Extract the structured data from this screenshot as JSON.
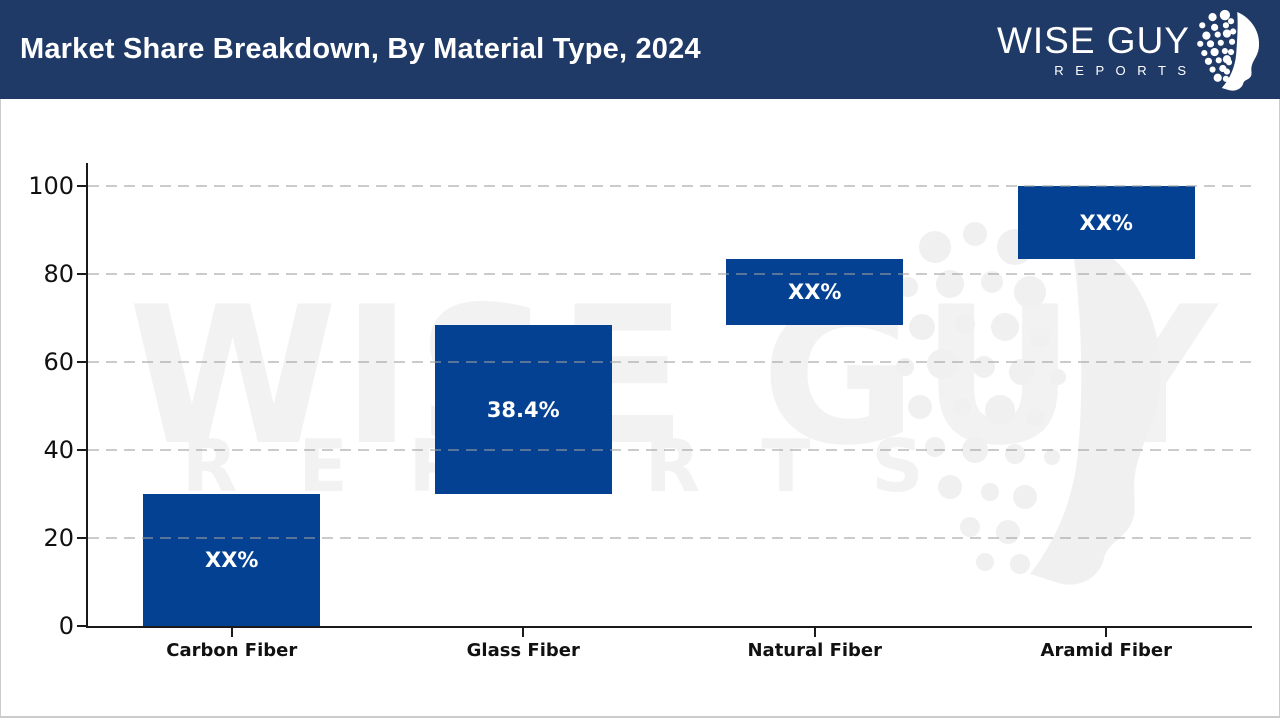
{
  "header": {
    "title": "Market Share Breakdown, By Material Type, 2024",
    "bg_color": "#203A67",
    "logo": {
      "wordmark": "WISE GUY",
      "subtext": "R E P O R T S"
    }
  },
  "watermark": {
    "wordmark": "WISE GUY",
    "subtext": "R E P O R T S"
  },
  "chart_data": {
    "type": "bar",
    "subtype": "floating-waterfall",
    "title": "Market Share Breakdown, By Material Type, 2024",
    "categories": [
      "Carbon Fiber",
      "Glass Fiber",
      "Natural Fiber",
      "Aramid Fiber"
    ],
    "segments": [
      {
        "category": "Carbon Fiber",
        "start": 0,
        "end": 30,
        "value": 30,
        "label": "XX%"
      },
      {
        "category": "Glass Fiber",
        "start": 30,
        "end": 68.4,
        "value": 38.4,
        "label": "38.4%"
      },
      {
        "category": "Natural Fiber",
        "start": 68.4,
        "end": 83.4,
        "value": 15,
        "label": "XX%"
      },
      {
        "category": "Aramid Fiber",
        "start": 83.4,
        "end": 100,
        "value": 16.6,
        "label": "XX%"
      }
    ],
    "y_ticks": [
      "0",
      "20",
      "40",
      "60",
      "80",
      "100"
    ],
    "ylim": [
      0,
      105
    ],
    "ylabel": "",
    "xlabel": "",
    "grid": {
      "horizontal": true,
      "style": "dashed",
      "color": "#d9d9d9"
    },
    "bar_color": "#044193",
    "bar_label_color": "#ffffff",
    "legend": false
  }
}
